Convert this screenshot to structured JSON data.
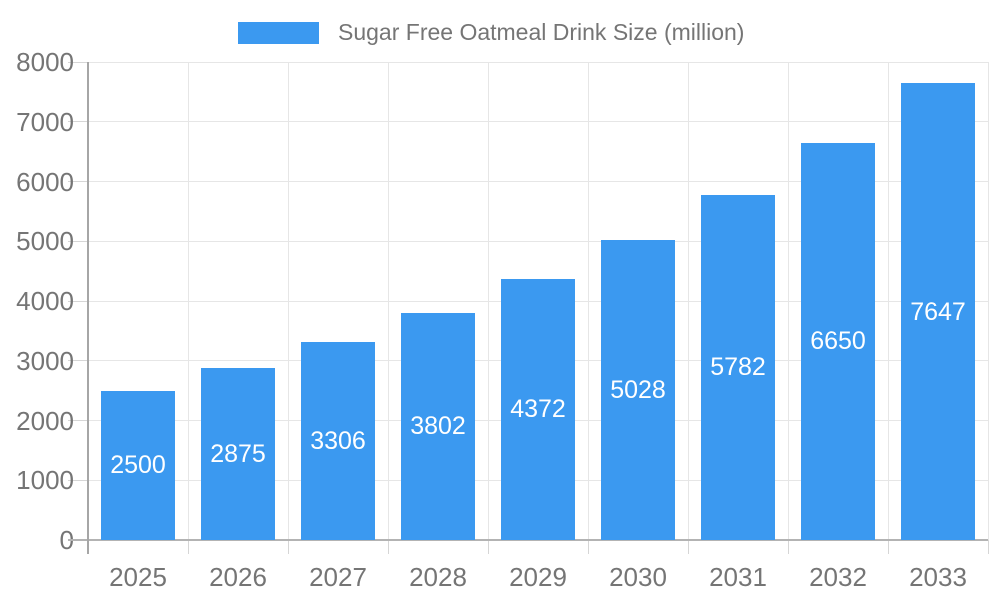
{
  "legend": {
    "items": [
      {
        "label": "Sugar Free Oatmeal Drink Size (million)",
        "color": "#3b99f0"
      }
    ],
    "position": "top"
  },
  "chart_data": {
    "type": "bar",
    "title": "",
    "categories": [
      "2025",
      "2026",
      "2027",
      "2028",
      "2029",
      "2030",
      "2031",
      "2032",
      "2033"
    ],
    "series": [
      {
        "name": "Sugar Free Oatmeal Drink Size (million)",
        "values": [
          2500,
          2875,
          3306,
          3802,
          4372,
          5028,
          5782,
          6650,
          7647
        ],
        "color": "#3b99f0"
      }
    ],
    "xlabel": "",
    "ylabel": "",
    "ylim": [
      0,
      8000
    ],
    "yticks": [
      0,
      1000,
      2000,
      3000,
      4000,
      5000,
      6000,
      7000,
      8000
    ],
    "grid": true,
    "value_labels_position": "inside-center",
    "colors": {
      "bar": "#3b99f0",
      "axis_text": "#757575",
      "value_label": "#ffffff",
      "gridline": "#e6e6e6",
      "tick": "#d6d6d6",
      "y_axis_line": "#a6a6a6",
      "x_axis_line": "#b3b3b3",
      "background": "#ffffff"
    }
  }
}
